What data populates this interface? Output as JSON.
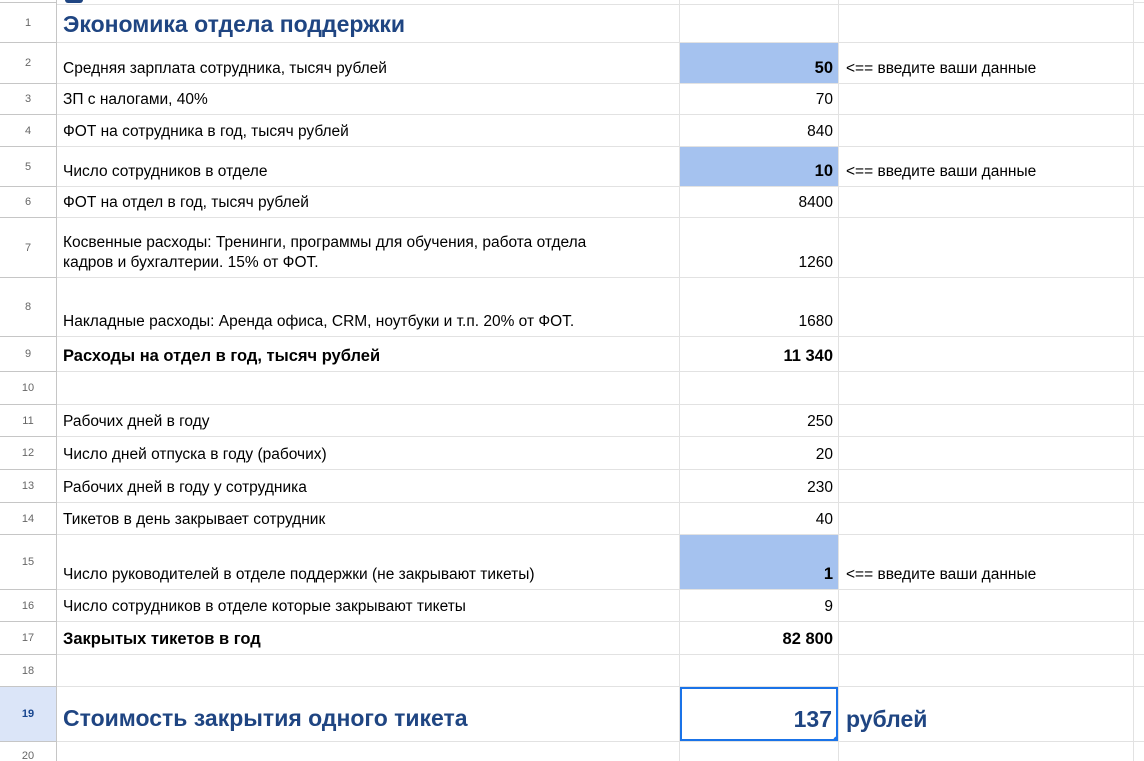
{
  "sheet": {
    "title": "Экономика отдела поддержки",
    "selected_cell": {
      "row": "19",
      "value": "137"
    },
    "input_note": "<== введите ваши данные"
  },
  "colors": {
    "title_text": "#1f4582",
    "input_highlight": "#a5c2ef",
    "selection_border": "#1a73e8",
    "gridline": "#e2e2e2",
    "row_number_text": "#666666",
    "selected_row_header_bg": "#dbe5f8"
  },
  "rows": [
    {
      "num": "1",
      "label": "Экономика отдела поддержки"
    },
    {
      "num": "2",
      "label": "Средняя зарплата сотрудника, тысяч рублей",
      "value": "50",
      "note": "<== введите ваши данные"
    },
    {
      "num": "3",
      "label": "ЗП с налогами, 40%",
      "value": "70"
    },
    {
      "num": "4",
      "label": "ФОТ на сотрудника в год, тысяч рублей",
      "value": "840"
    },
    {
      "num": "5",
      "label": "Число сотрудников в отделе",
      "value": "10",
      "note": "<== введите ваши данные"
    },
    {
      "num": "6",
      "label": "ФОТ на отдел в год, тысяч рублей",
      "value": "8400"
    },
    {
      "num": "7",
      "label": "Косвенные расходы: Тренинги, программы для обучения, работа отдела кадров и бухгалтерии. 15% от ФОТ.",
      "value": "1260"
    },
    {
      "num": "8",
      "label": "Накладные расходы: Аренда офиса, CRM, ноутбуки и т.п.  20% от ФОТ.",
      "value": "1680"
    },
    {
      "num": "9",
      "label": "Расходы на отдел в год, тысяч рублей",
      "value": "11 340"
    },
    {
      "num": "10",
      "label": "",
      "value": ""
    },
    {
      "num": "11",
      "label": "Рабочих дней в году",
      "value": "250"
    },
    {
      "num": "12",
      "label": "Число дней отпуска в году (рабочих)",
      "value": "20"
    },
    {
      "num": "13",
      "label": "Рабочих дней в году у сотрудника",
      "value": "230"
    },
    {
      "num": "14",
      "label": "Тикетов в день закрывает сотрудник",
      "value": "40"
    },
    {
      "num": "15",
      "label": "Число руководителей в отделе поддержки (не закрывают тикеты)",
      "value": "1",
      "note": "<== введите ваши данные"
    },
    {
      "num": "16",
      "label": "Число сотрудников в отделе которые закрывают тикеты",
      "value": "9"
    },
    {
      "num": "17",
      "label": "Закрытых тикетов в год",
      "value": "82 800"
    },
    {
      "num": "18",
      "label": "",
      "value": ""
    },
    {
      "num": "19",
      "label": "Стоимость закрытия одного тикета",
      "value": "137",
      "unit": "рублей"
    },
    {
      "num": "20",
      "label": "",
      "value": ""
    }
  ]
}
